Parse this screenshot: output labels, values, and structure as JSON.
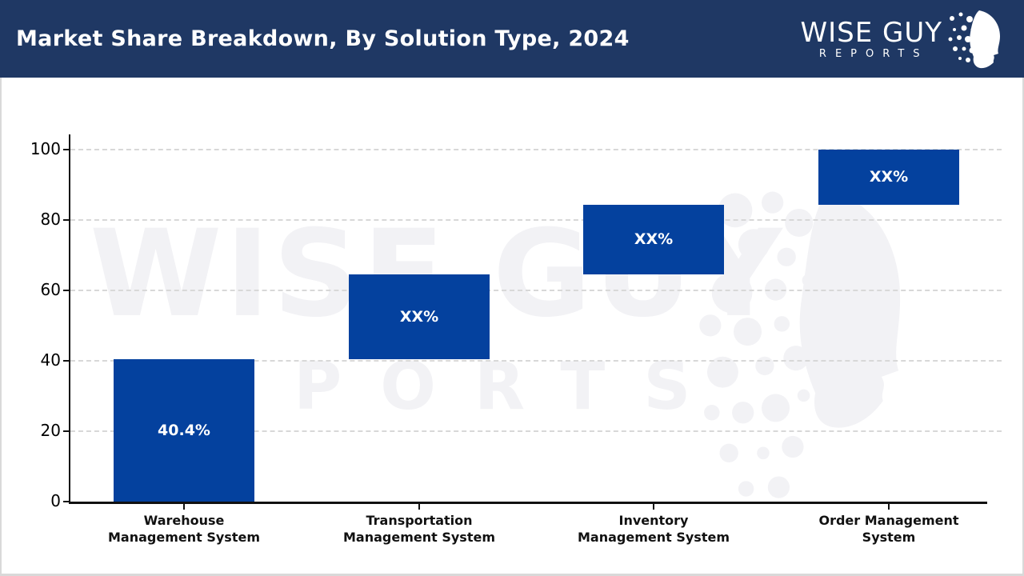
{
  "header": {
    "title": "Market Share Breakdown, By Solution Type, 2024",
    "logo": {
      "line1": "WISE GUY",
      "line2": "REPORTS"
    }
  },
  "watermark": {
    "line1": "WISE GUY",
    "line2": "REPORTS"
  },
  "chart_data": {
    "type": "bar",
    "subtype": "waterfall",
    "title": "Market Share Breakdown, By Solution Type, 2024",
    "categories": [
      "Warehouse Management System",
      "Transportation Management System",
      "Inventory Management System",
      "Order Management System"
    ],
    "category_lines": [
      [
        "Warehouse",
        "Management System"
      ],
      [
        "Transportation",
        "Management System"
      ],
      [
        "Inventory",
        "Management System"
      ],
      [
        "Order Management",
        "System"
      ]
    ],
    "segments": [
      {
        "category": "Warehouse Management System",
        "start": 0,
        "end": 40.4,
        "label": "40.4%"
      },
      {
        "category": "Transportation Management System",
        "start": 40.4,
        "end": 64.6,
        "label": "XX%"
      },
      {
        "category": "Inventory Management System",
        "start": 64.6,
        "end": 84.4,
        "label": "XX%"
      },
      {
        "category": "Order Management System",
        "start": 84.4,
        "end": 100,
        "label": "XX%"
      }
    ],
    "xlabel": "",
    "ylabel": "",
    "ylim": [
      0,
      100
    ],
    "yticks": [
      0,
      20,
      40,
      60,
      80,
      100
    ],
    "grid": "horizontal-dashed",
    "legend": "none",
    "bar_color": "#04419e",
    "value_label_color": "#ffffff"
  },
  "colors": {
    "header_bg": "#1f3864",
    "header_text": "#ffffff",
    "bar": "#04419e",
    "gridline": "#d8d8d8",
    "axis": "#111111",
    "watermark": "#f2f2f5",
    "frame_border": "#d9d9d9"
  }
}
